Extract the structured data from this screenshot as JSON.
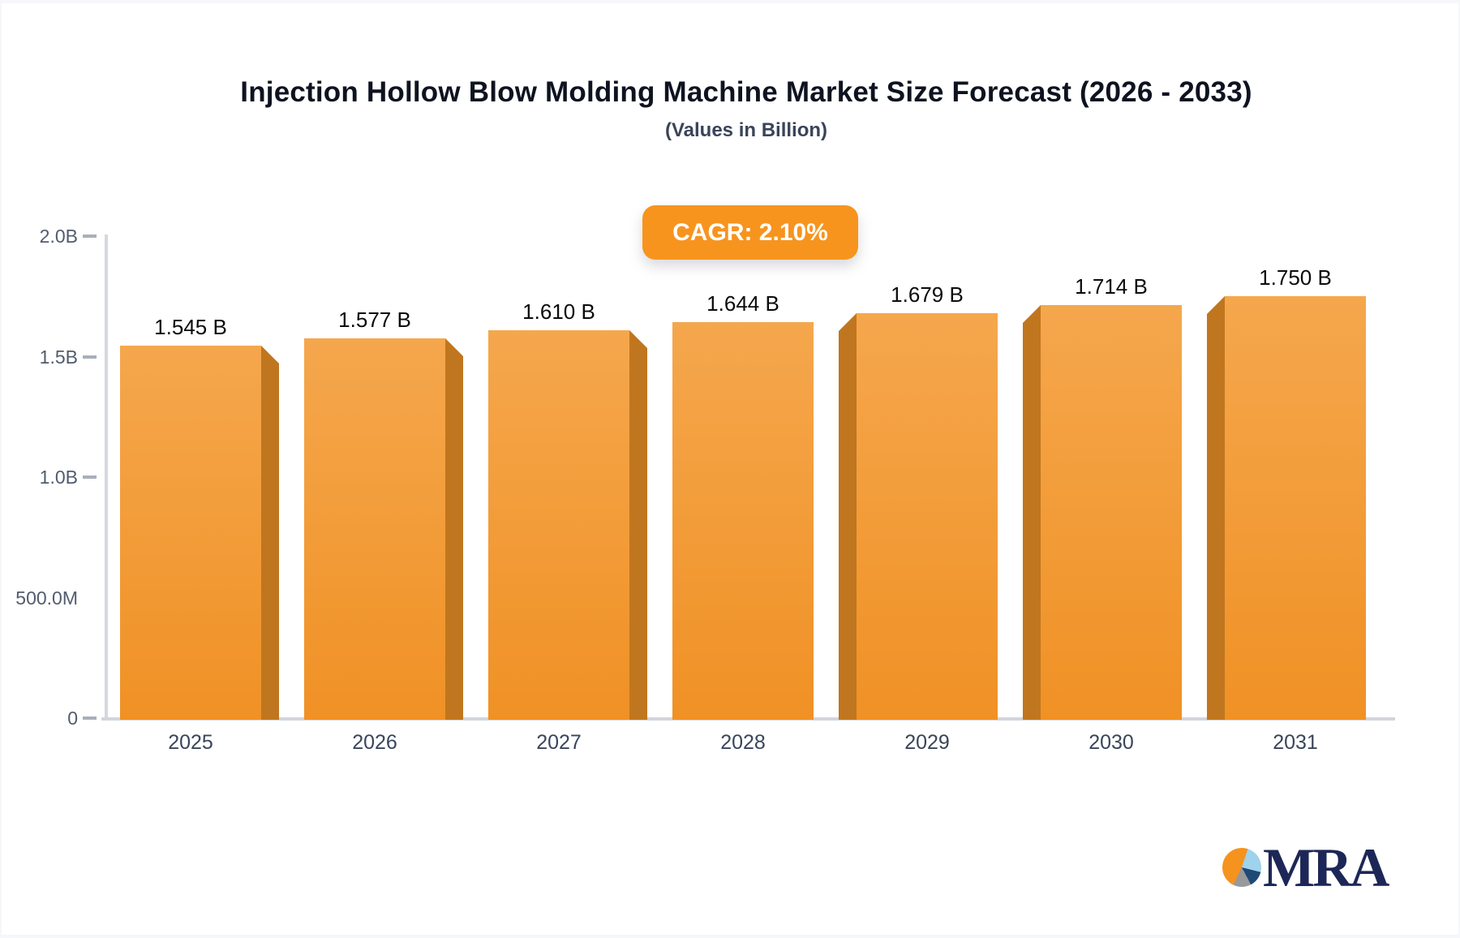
{
  "header": {
    "title": "Injection Hollow Blow Molding Machine Market Size Forecast (2026 - 2033)",
    "subtitle": "(Values in Billion)"
  },
  "cagr_badge": {
    "label": "CAGR: 2.10%",
    "background": "#F7941E",
    "text_color": "#FFFFFF"
  },
  "chart_data": {
    "type": "bar",
    "title": "Injection Hollow Blow Molding Machine Market Size Forecast (2026 - 2033)",
    "subtitle": "(Values in Billion)",
    "cagr_label": "CAGR: 2.10%",
    "categories": [
      "2025",
      "2026",
      "2027",
      "2028",
      "2029",
      "2030",
      "2031"
    ],
    "values": [
      1.545,
      1.577,
      1.61,
      1.644,
      1.679,
      1.714,
      1.75
    ],
    "value_labels": [
      "1.545 B",
      "1.577 B",
      "1.610 B",
      "1.644 B",
      "1.679 B",
      "1.714 B",
      "1.750 B"
    ],
    "ylim": [
      0,
      2.0
    ],
    "yticks": [
      {
        "label": "2.0B",
        "value": 2.0,
        "tick_mark": true
      },
      {
        "label": "1.5B",
        "value": 1.5,
        "tick_mark": true
      },
      {
        "label": "1.0B",
        "value": 1.0,
        "tick_mark": true
      },
      {
        "label": "500.0M",
        "value": 0.5,
        "tick_mark": false
      },
      {
        "label": "0",
        "value": 0.0,
        "tick_mark": true
      }
    ],
    "grid": false,
    "legend": false,
    "bar_colors": {
      "face_top": "#F5A74D",
      "face_bottom": "#F09125",
      "side": "#C0761F"
    }
  },
  "logo": {
    "text": "MRA",
    "text_color": "#1D2757",
    "pie_colors": [
      "#F6921E",
      "#9ED2ED",
      "#1F4A75",
      "#97999C"
    ]
  }
}
